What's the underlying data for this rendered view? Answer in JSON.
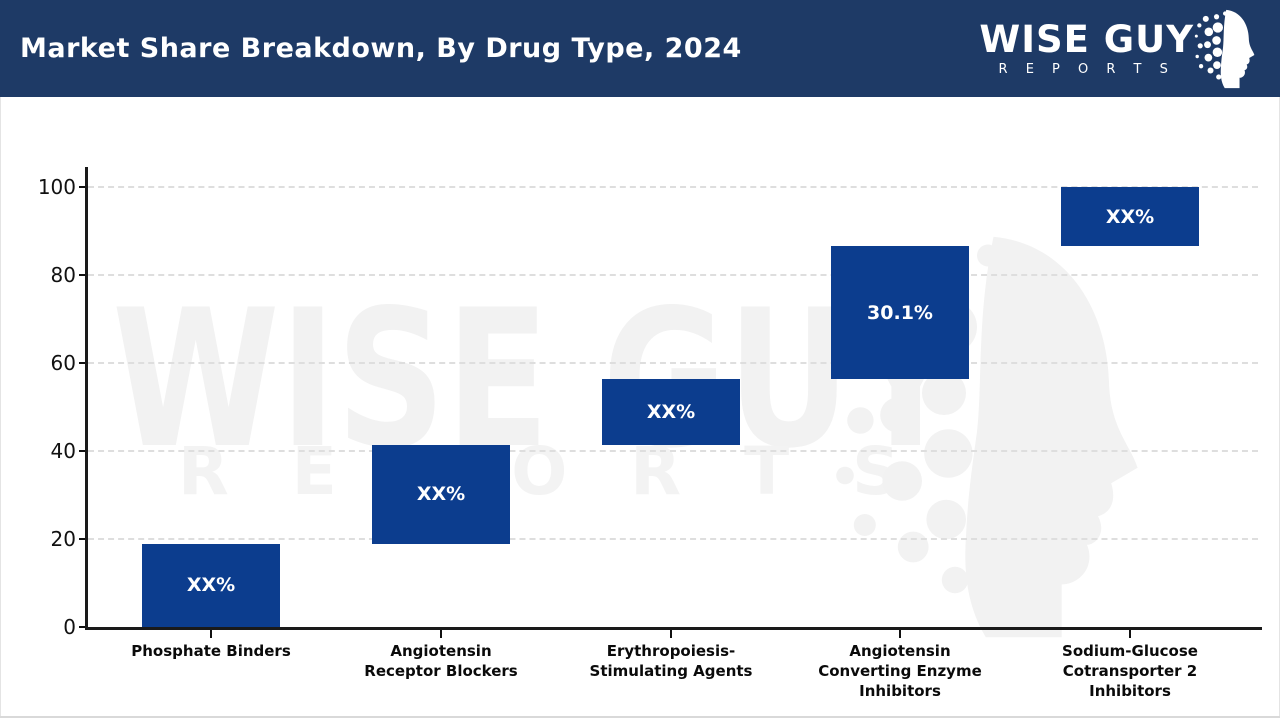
{
  "header": {
    "title": "Market Share Breakdown, By Drug Type, 2024",
    "logo": {
      "wordmark": "WISE GUY",
      "subtitle": "R E P O R T S"
    }
  },
  "watermark": {
    "line1": "WISE GUY",
    "line2": "R E P O R T S"
  },
  "chart_data": {
    "type": "bar",
    "subtype": "waterfall",
    "title": "Market Share Breakdown, By Drug Type, 2024",
    "categories": [
      "Phosphate Binders",
      "Angiotensin Receptor Blockers",
      "Erythropoiesis-Stimulating Agents",
      "Angiotensin Converting Enzyme Inhibitors",
      "Sodium-Glucose Cotransporter 2 Inhibitors"
    ],
    "category_lines": [
      [
        "Phosphate Binders"
      ],
      [
        "Angiotensin",
        "Receptor Blockers"
      ],
      [
        "Erythropoiesis-",
        "Stimulating Agents"
      ],
      [
        "Angiotensin",
        "Converting Enzyme",
        "Inhibitors"
      ],
      [
        "Sodium-Glucose",
        "Cotransporter 2",
        "Inhibitors"
      ]
    ],
    "segments": [
      {
        "category": "Phosphate Binders",
        "label": "XX%",
        "from": 0,
        "to": 18.9,
        "value": 18.9
      },
      {
        "category": "Angiotensin Receptor Blockers",
        "label": "XX%",
        "from": 18.9,
        "to": 41.4,
        "value": 22.5
      },
      {
        "category": "Erythropoiesis-Stimulating Agents",
        "label": "XX%",
        "from": 41.4,
        "to": 56.4,
        "value": 15.0
      },
      {
        "category": "Angiotensin Converting Enzyme Inhibitors",
        "label": "30.1%",
        "from": 56.4,
        "to": 86.5,
        "value": 30.1
      },
      {
        "category": "Sodium-Glucose Cotransporter 2 Inhibitors",
        "label": "XX%",
        "from": 86.5,
        "to": 100,
        "value": 13.5
      }
    ],
    "yticks": [
      0,
      20,
      40,
      60,
      80,
      100
    ],
    "ylim": [
      0,
      100
    ],
    "values_unit": "%",
    "grid": "dashed-horizontal",
    "legend": "none",
    "bar_color": "#0c3d8e",
    "bar_label_color": "#ffffff"
  },
  "colors": {
    "header_bg": "#1e3a66",
    "axis": "#1a1a1a",
    "gridline": "#dedede",
    "watermark": "#f2f2f2",
    "footer_line": "#d9d9d9"
  }
}
